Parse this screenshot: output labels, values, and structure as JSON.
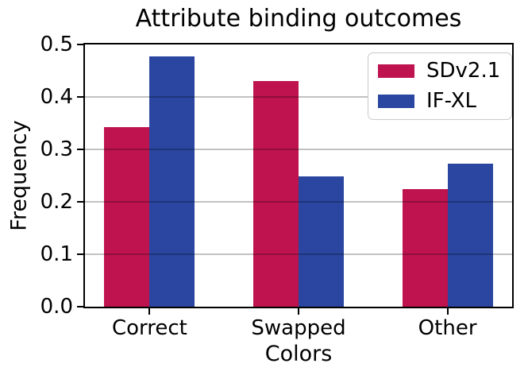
{
  "chart_data": {
    "type": "bar",
    "title": "Attribute binding outcomes",
    "xlabel": "Colors",
    "ylabel": "Frequency",
    "categories": [
      "Correct",
      "Swapped",
      "Other"
    ],
    "series": [
      {
        "name": "SDv2.1",
        "color": "#be134e",
        "values": [
          0.342,
          0.431,
          0.225
        ]
      },
      {
        "name": "IF-XL",
        "color": "#2a46a0",
        "values": [
          0.477,
          0.248,
          0.273
        ]
      }
    ],
    "ylim": [
      0.0,
      0.5
    ],
    "yticks": [
      0.0,
      0.1,
      0.2,
      0.3,
      0.4,
      0.5
    ],
    "ytick_labels": [
      "0.0",
      "0.1",
      "0.2",
      "0.3",
      "0.4",
      "0.5"
    ],
    "xlim": [
      -0.434,
      2.434
    ],
    "bar_width_units": 0.304,
    "grid": "horizontal-over-bars",
    "legend_position": "upper right",
    "background": "#ffffff",
    "spine_color": "#000000"
  }
}
